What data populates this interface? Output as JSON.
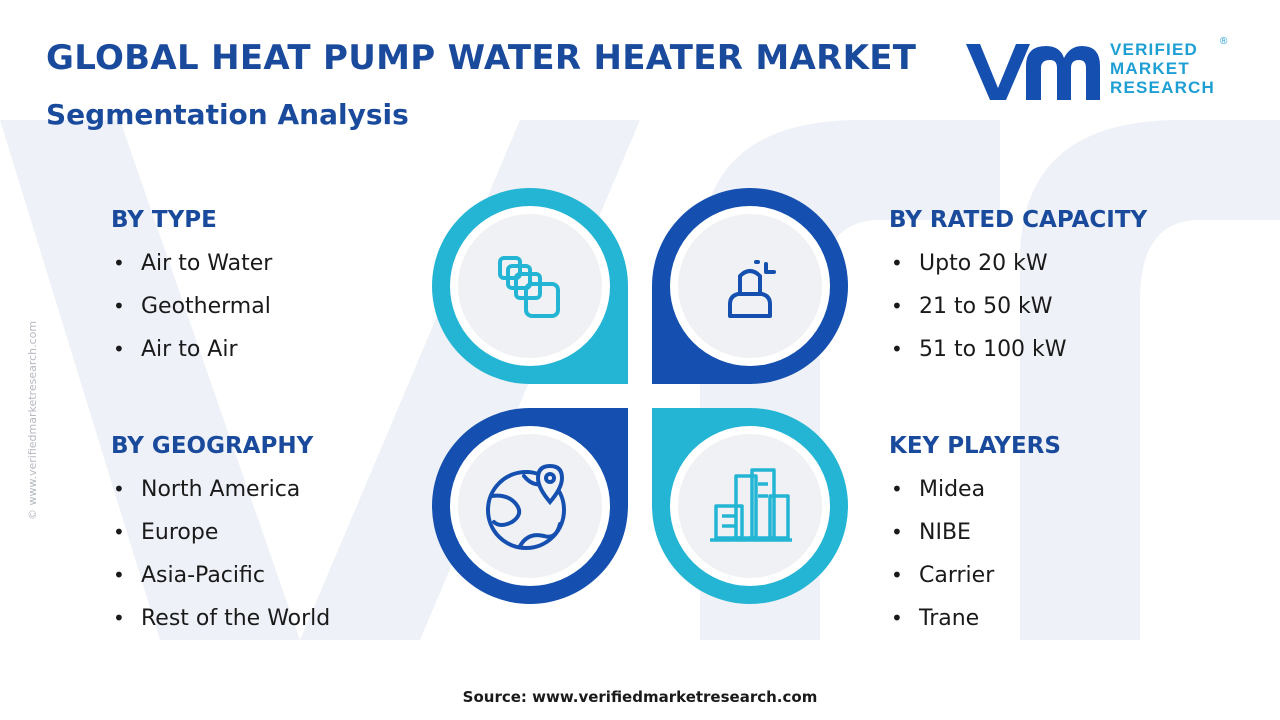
{
  "header": {
    "title": "GLOBAL HEAT PUMP WATER HEATER MARKET",
    "subtitle": "Segmentation Analysis"
  },
  "logo": {
    "line1": "VERIFIED",
    "line2": "MARKET",
    "line3": "RESEARCH",
    "registered": "®"
  },
  "side_credit": "© www.verifiedmarketresearch.com",
  "segments": {
    "type": {
      "title": "BY TYPE",
      "items": [
        "Air to Water",
        "Geothermal",
        "Air to Air"
      ],
      "icon": "stacked-squares-icon"
    },
    "rated_capacity": {
      "title": "BY RATED CAPACITY",
      "items": [
        "Upto 20 kW",
        "21 to 50 kW",
        "51 to 100 kW"
      ],
      "icon": "person-icon"
    },
    "geography": {
      "title": "BY GEOGRAPHY",
      "items": [
        "North America",
        "Europe",
        "Asia-Pacific",
        "Rest of the World"
      ],
      "icon": "globe-pin-icon"
    },
    "key_players": {
      "title": "KEY PLAYERS",
      "items": [
        "Midea",
        "NIBE",
        "Carrier",
        "Trane"
      ],
      "icon": "buildings-icon"
    }
  },
  "source": "Source: www.verifiedmarketresearch.com",
  "colors": {
    "navy": "#1a4a9c",
    "dark_blue": "#1550b0",
    "cyan": "#23b5d3",
    "logo_cyan": "#1e9fd4",
    "circle_fill": "#f0f1f4"
  }
}
